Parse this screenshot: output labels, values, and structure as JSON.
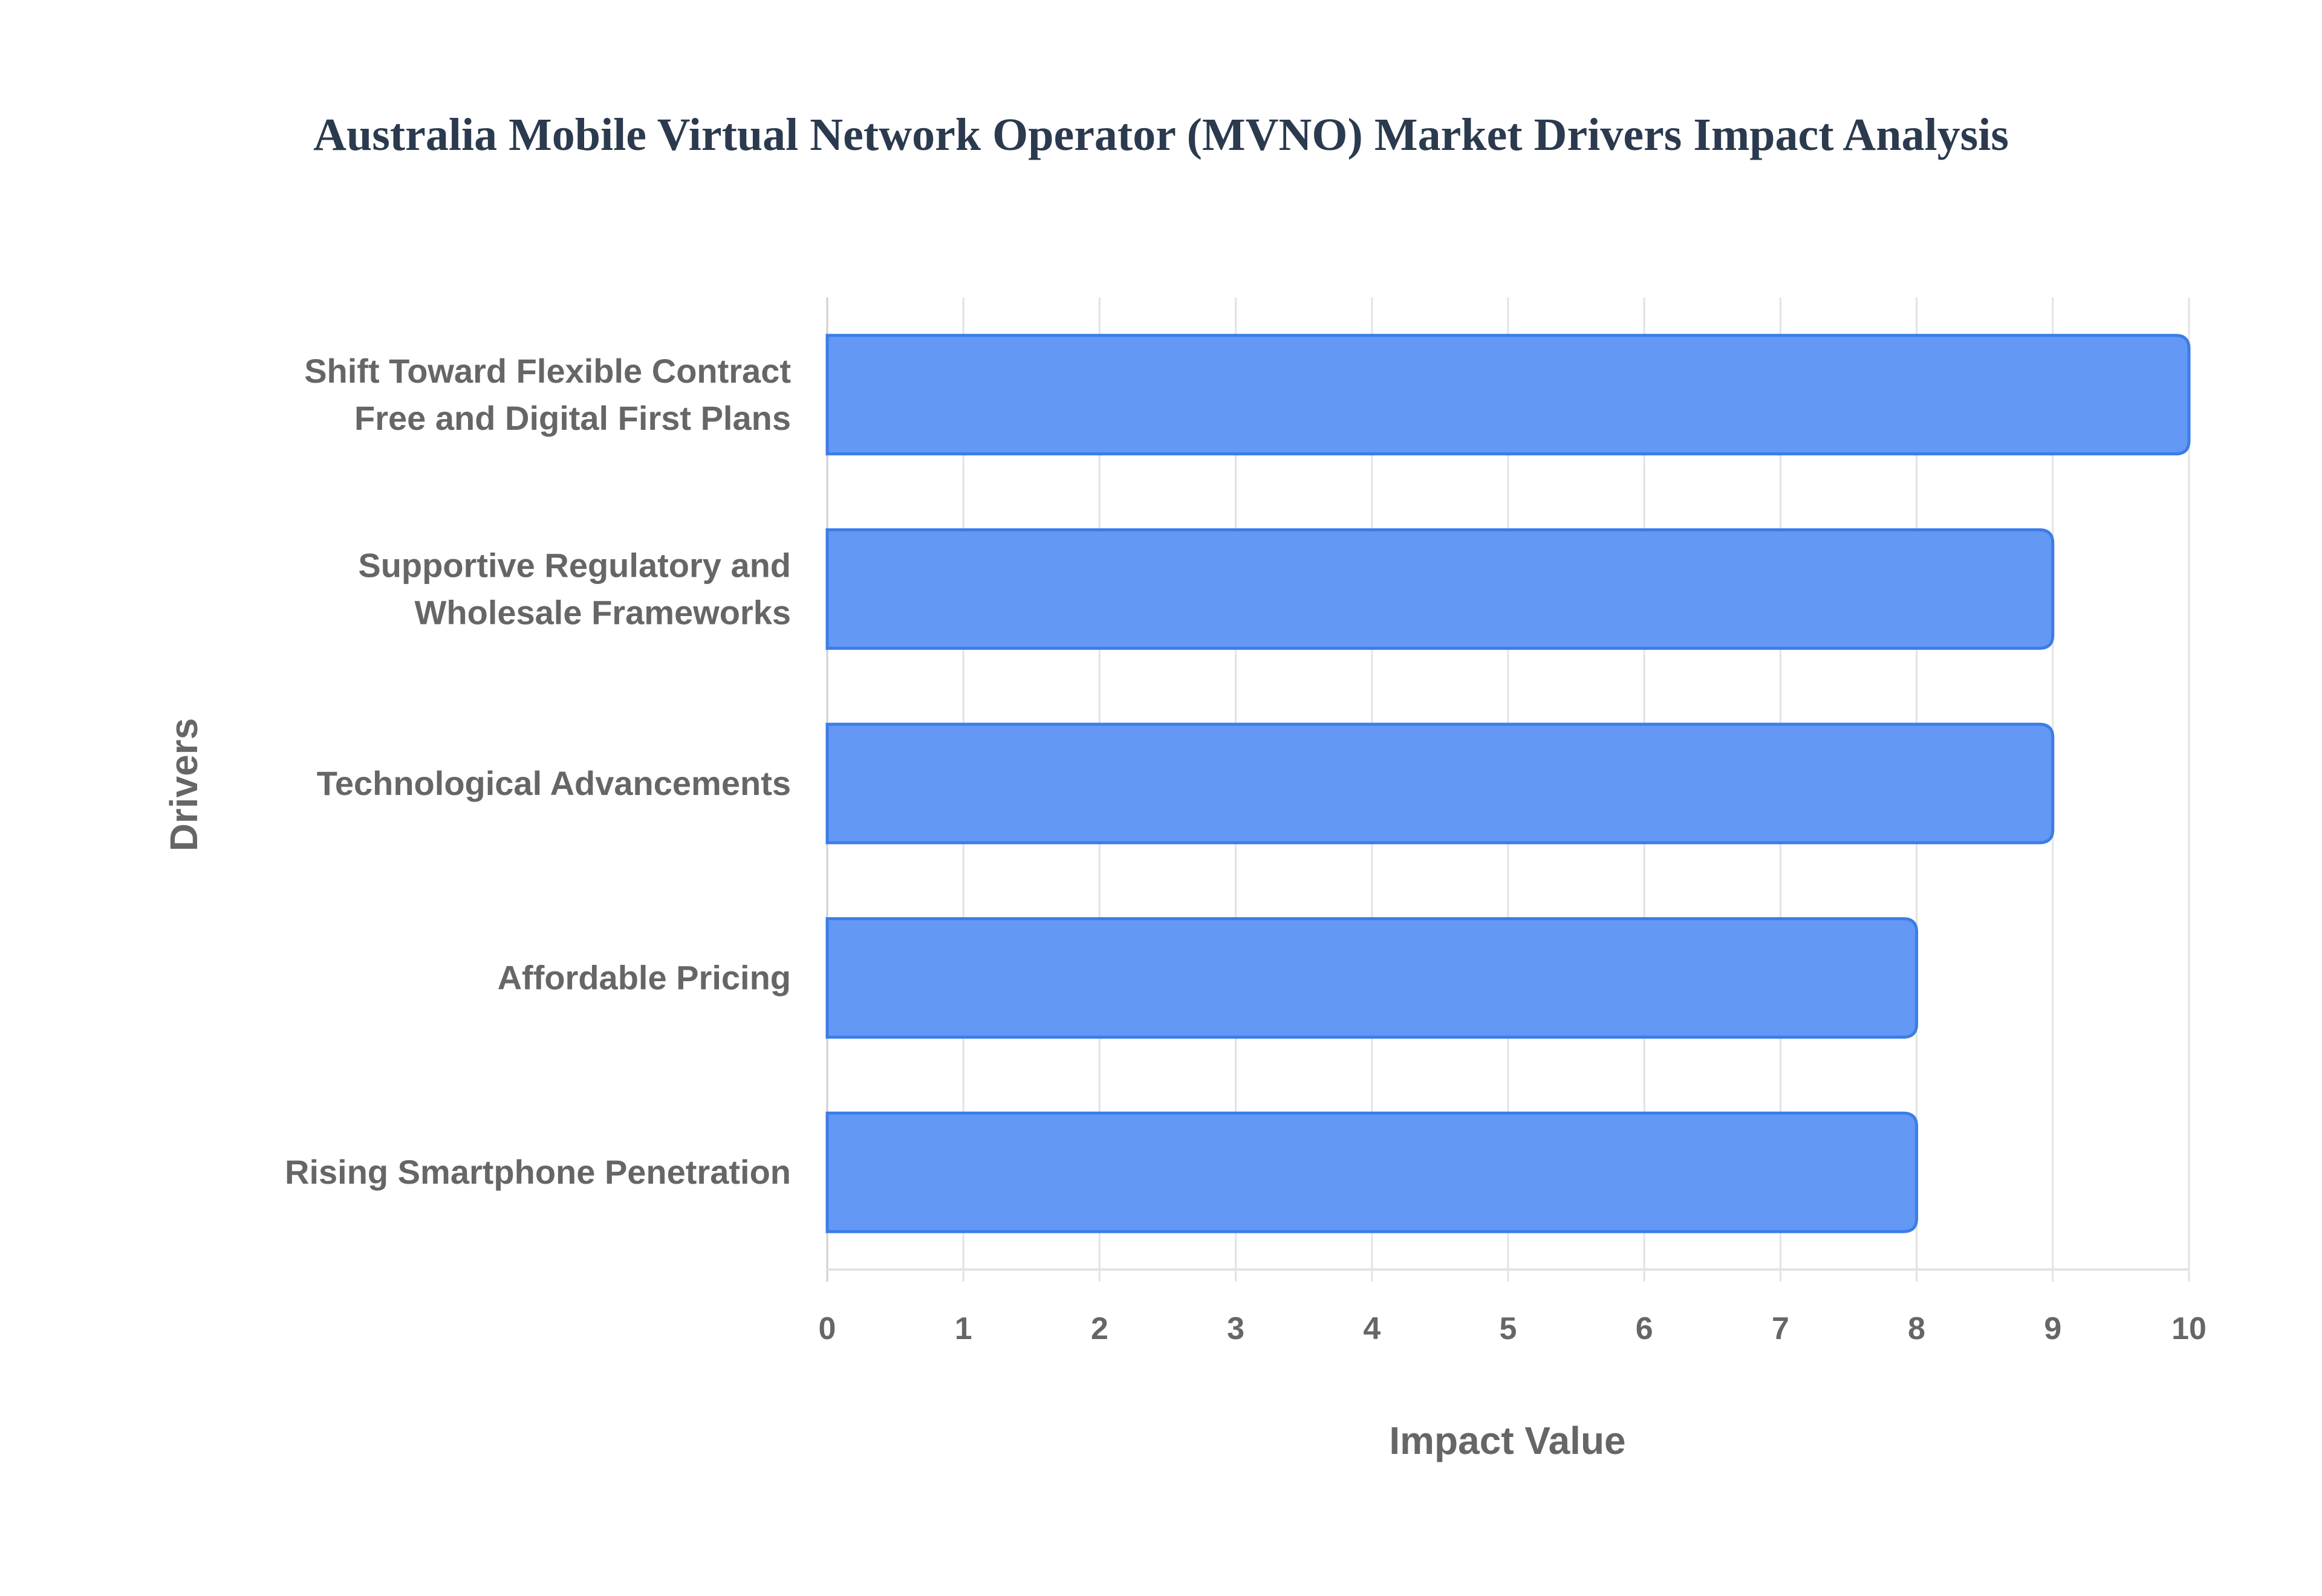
{
  "chart_data": {
    "type": "bar",
    "orientation": "horizontal",
    "title": "Australia Mobile Virtual Network Operator (MVNO) Market Drivers Impact Analysis",
    "xlabel": "Impact Value",
    "ylabel": "Drivers",
    "categories": [
      [
        "Shift Toward Flexible Contract",
        "Free and Digital First Plans"
      ],
      [
        "Supportive Regulatory and",
        "Wholesale Frameworks"
      ],
      [
        "Technological Advancements"
      ],
      [
        "Affordable Pricing"
      ],
      [
        "Rising Smartphone Penetration"
      ]
    ],
    "values": [
      10,
      9,
      9,
      8,
      8
    ],
    "xlim": [
      0,
      10
    ],
    "xticks": [
      "0",
      "1",
      "2",
      "3",
      "4",
      "5",
      "6",
      "7",
      "8",
      "9",
      "10"
    ],
    "grid": true,
    "colors": {
      "bar_fill": "#6399f4",
      "bar_border": "#3b7de8",
      "grid": "#e3e3e3"
    }
  }
}
